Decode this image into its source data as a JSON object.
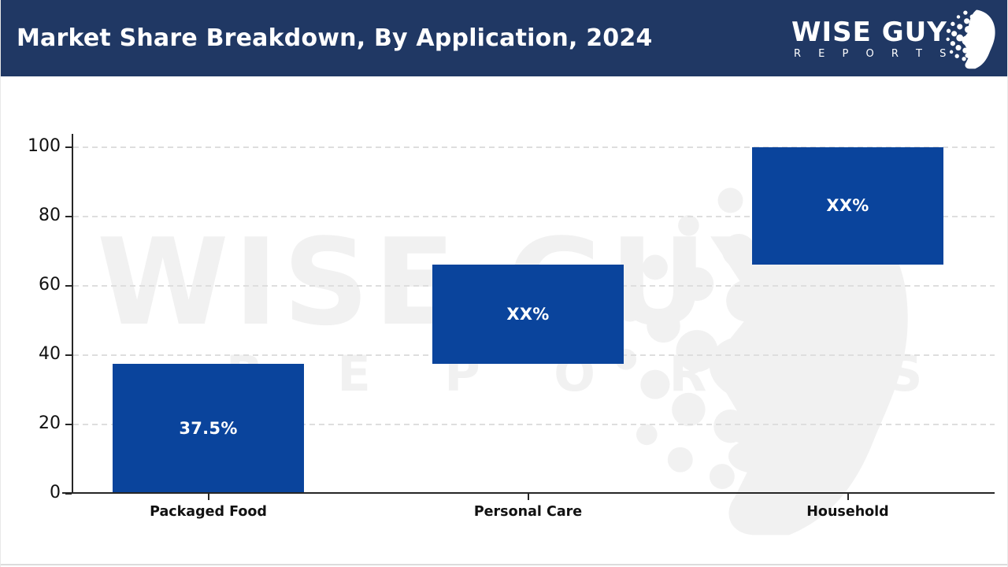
{
  "header": {
    "title": "Market Share Breakdown, By Application, 2024",
    "background_color": "#203864"
  },
  "logo": {
    "line1": "WISE GUY",
    "line2": "R E P O R T S",
    "icon": "wiseguy-face-logo"
  },
  "watermark": {
    "line1": "WISE GUY",
    "line2": "R E P O R T S",
    "icon": "wiseguy-face-watermark"
  },
  "chart_data": {
    "type": "bar",
    "variant": "floating-cumulative-waterfall",
    "title": "Market Share Breakdown, By Application, 2024",
    "categories": [
      "Packaged Food",
      "Personal Care",
      "Household"
    ],
    "bars": [
      {
        "category": "Packaged Food",
        "start": 0,
        "end": 37.5,
        "value": 37.5,
        "label": "37.5%"
      },
      {
        "category": "Personal Care",
        "start": 37.5,
        "end": 66,
        "value": 28.5,
        "label": "XX%"
      },
      {
        "category": "Household",
        "start": 66,
        "end": 100,
        "value": 34,
        "label": "XX%"
      }
    ],
    "xlabel": "",
    "ylabel": "",
    "ylim": [
      0,
      100
    ],
    "yticks": [
      0,
      20,
      40,
      60,
      80,
      100
    ],
    "grid": "dashed-horizontal",
    "legend": "none",
    "bar_color": "#0a449c",
    "bar_label_color": "#ffffff",
    "axis_color": "#262626",
    "grid_color": "#dedede"
  }
}
